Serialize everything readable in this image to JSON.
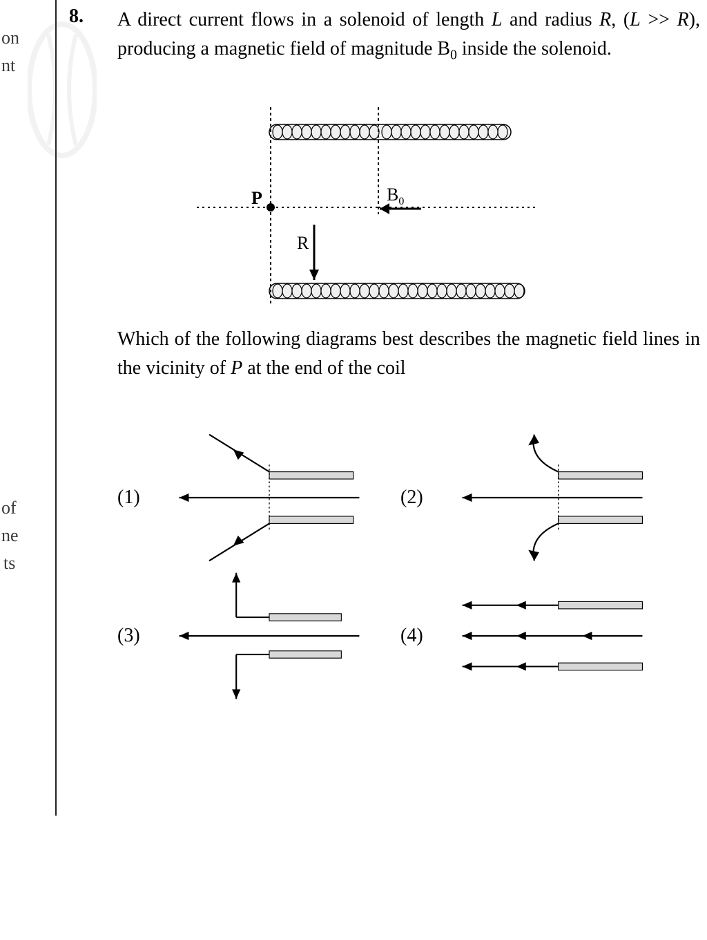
{
  "left_edge": {
    "frag1": "on",
    "frag2": "nt",
    "frag3": "of",
    "frag4": "ne",
    "frag5": "ts"
  },
  "question": {
    "number": "8.",
    "text_html": "A direct current flows in a solenoid of length <span class='ital'>L</span> and radius <span class='ital'>R</span>, (<span class='ital'>L</span> &gt;&gt; <span class='ital'>R</span>), producing a magnetic field of magnitude B<sub>0</sub> inside the solenoid.",
    "followup_html": "Which of the following diagrams best describes the magnetic field lines in the vicinity of <span class='ital'>P</span> at the end of the coil"
  },
  "diagram_labels": {
    "P": "P",
    "B0": "B",
    "B0_sub": "0",
    "R": "R"
  },
  "options": {
    "o1": "(1)",
    "o2": "(2)",
    "o3": "(3)",
    "o4": "(4)"
  },
  "style": {
    "text_color": "#000000",
    "bg_color": "#ffffff",
    "edge_text_color": "#3a3a3a",
    "vline_color": "#222222",
    "stroke_color": "#000000",
    "coil_fill": "#dcdcdc",
    "font_size_body": 28,
    "font_family": "Times New Roman"
  }
}
